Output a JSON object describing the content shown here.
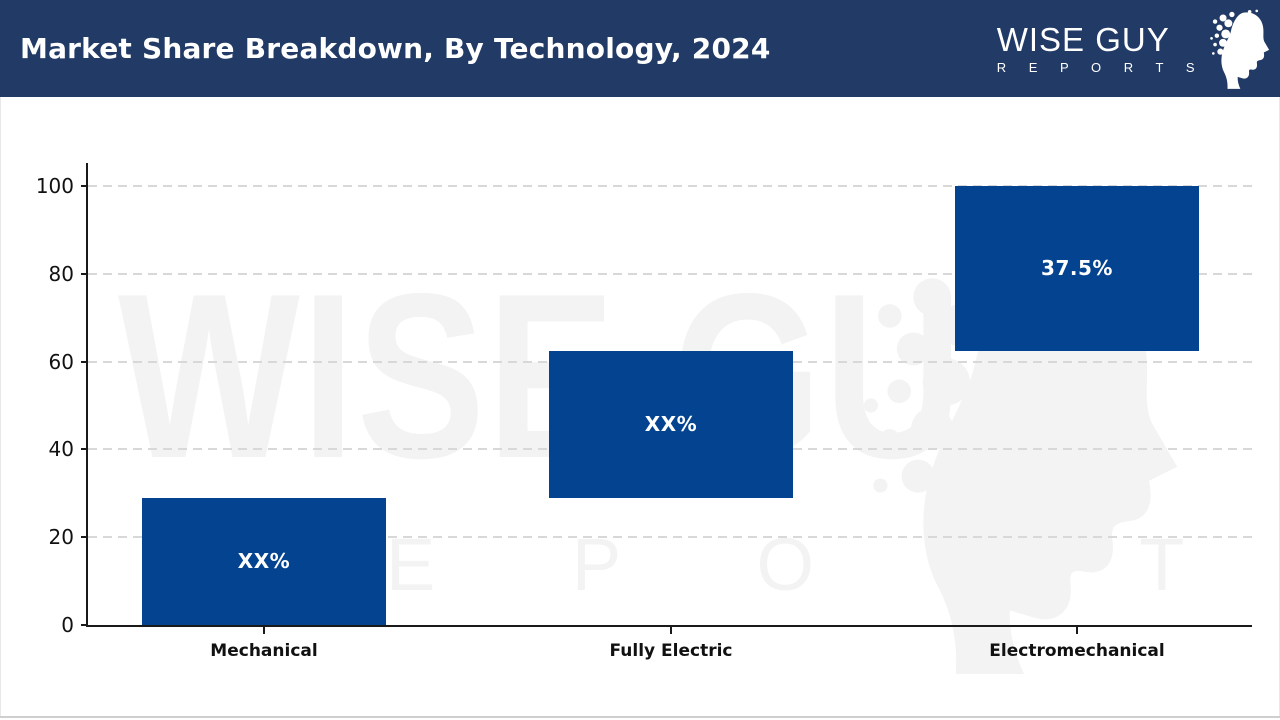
{
  "header": {
    "title": "Market Share Breakdown, By Technology, 2024",
    "logo": {
      "line1": "WISE GUY",
      "line2": "R E P O R T S",
      "face_icon": "face-profile-dots-icon"
    }
  },
  "watermark": {
    "line1": "WISE GUY",
    "line2": "R E P O R T S"
  },
  "colors": {
    "header_bg": "#213a66",
    "bar_blue": "#04438f",
    "grid_gray": "#d8d8d8",
    "axis_black": "#1a1a1a",
    "watermark_gray": "#f3f3f3",
    "value_label_white": "#ffffff",
    "bottom_line_gray": "#cfcfcf"
  },
  "chart_data": {
    "type": "bar",
    "variant": "waterfall",
    "title": "Market Share Breakdown, By Technology, 2024",
    "xlabel": "",
    "ylabel": "",
    "ylim": [
      0,
      105
    ],
    "yticks": [
      0,
      20,
      40,
      60,
      80,
      100
    ],
    "grid": "horizontal dashed",
    "legend": "none",
    "categories": [
      "Mechanical",
      "Fully Electric",
      "Electromechanical"
    ],
    "segments": [
      {
        "category": "Mechanical",
        "from": 0,
        "to": 29,
        "label": "XX%"
      },
      {
        "category": "Fully Electric",
        "from": 29,
        "to": 62.5,
        "label": "XX%"
      },
      {
        "category": "Electromechanical",
        "from": 62.5,
        "to": 100,
        "label": "37.5%"
      }
    ]
  }
}
